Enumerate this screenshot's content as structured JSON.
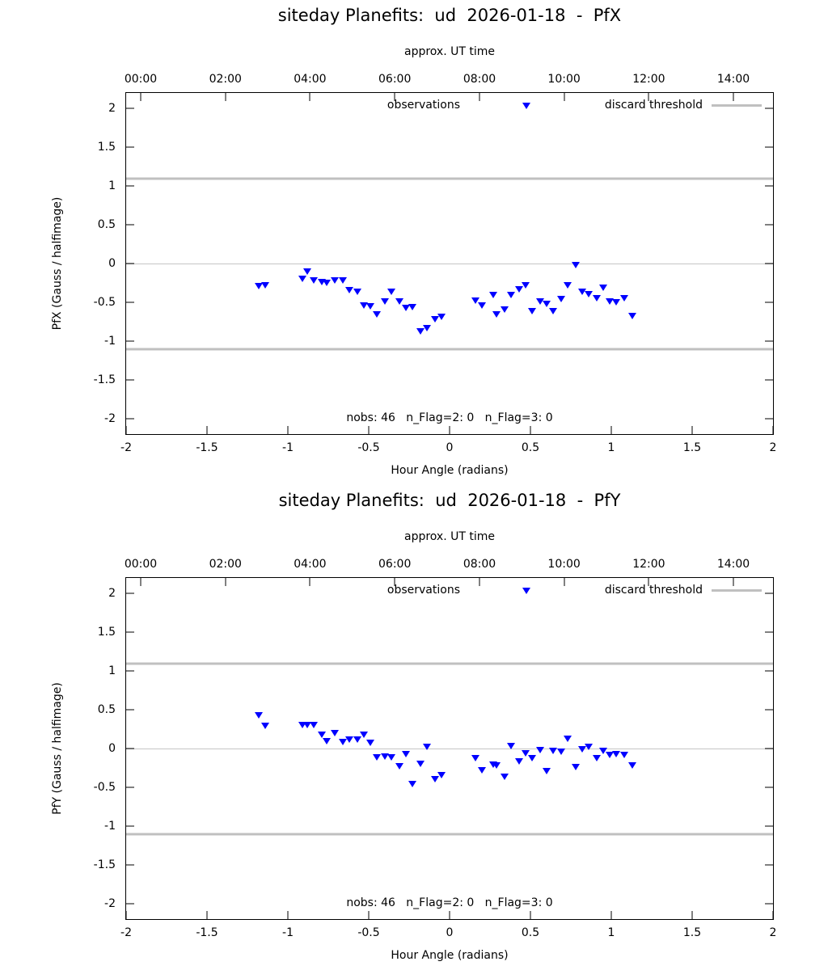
{
  "stats": {
    "nobs": 46,
    "n_flag_2": 0,
    "n_flag_3": 0
  },
  "chart_data": [
    {
      "type": "scatter",
      "title": "siteday Planefits:  ud  2026-01-18  -  PfX",
      "x2label": "approx. UT time",
      "xlabel": "Hour Angle (radians)",
      "ylabel": "PfX (Gauss / halfimage)",
      "xlim": [
        -2,
        2
      ],
      "ylim": [
        -2.2,
        2.2
      ],
      "grid": false,
      "x_ticks": [
        -2,
        -1.5,
        -1,
        -0.5,
        0,
        0.5,
        1,
        1.5,
        2
      ],
      "y_ticks": [
        2,
        1.5,
        1,
        0.5,
        0,
        -0.5,
        -1,
        -1.5,
        -2
      ],
      "ut_ticks": [
        {
          "label": "00:00",
          "ha": -1.91
        },
        {
          "label": "02:00",
          "ha": -1.386
        },
        {
          "label": "04:00",
          "ha": -0.863
        },
        {
          "label": "06:00",
          "ha": -0.339
        },
        {
          "label": "08:00",
          "ha": 0.185
        },
        {
          "label": "10:00",
          "ha": 0.708
        },
        {
          "label": "12:00",
          "ha": 1.232
        },
        {
          "label": "14:00",
          "ha": 1.755
        }
      ],
      "legend": [
        "observations",
        "discard threshold"
      ],
      "legend_position": "top-right-inside",
      "zero_line": 0,
      "thresholds": {
        "name": "discard threshold",
        "color": "#c0c0c0",
        "values": [
          1.1,
          -1.1
        ]
      },
      "annotation": "nobs: 46   n_Flag=2: 0   n_Flag=3: 0",
      "series": [
        {
          "name": "observations",
          "marker": "triangle-down",
          "color": "#0000ff",
          "x": [
            -1.18,
            -1.14,
            -0.91,
            -0.88,
            -0.84,
            -0.79,
            -0.76,
            -0.71,
            -0.66,
            -0.62,
            -0.57,
            -0.53,
            -0.49,
            -0.45,
            -0.4,
            -0.36,
            -0.31,
            -0.27,
            -0.23,
            -0.18,
            -0.14,
            -0.09,
            -0.05,
            0.16,
            0.2,
            0.27,
            0.29,
            0.34,
            0.38,
            0.43,
            0.47,
            0.51,
            0.56,
            0.6,
            0.64,
            0.69,
            0.73,
            0.78,
            0.82,
            0.86,
            0.91,
            0.95,
            0.99,
            1.03,
            1.08,
            1.13
          ],
          "y": [
            -0.29,
            -0.28,
            -0.2,
            -0.1,
            -0.22,
            -0.24,
            -0.25,
            -0.22,
            -0.22,
            -0.34,
            -0.37,
            -0.54,
            -0.55,
            -0.66,
            -0.49,
            -0.36,
            -0.49,
            -0.57,
            -0.56,
            -0.88,
            -0.83,
            -0.72,
            -0.69,
            -0.48,
            -0.54,
            -0.41,
            -0.66,
            -0.59,
            -0.41,
            -0.33,
            -0.28,
            -0.61,
            -0.49,
            -0.52,
            -0.61,
            -0.46,
            -0.28,
            -0.02,
            -0.37,
            -0.4,
            -0.45,
            -0.31,
            -0.49,
            -0.5,
            -0.45,
            -0.68
          ]
        }
      ]
    },
    {
      "type": "scatter",
      "title": "siteday Planefits:  ud  2026-01-18  -  PfY",
      "x2label": "approx. UT time",
      "xlabel": "Hour Angle (radians)",
      "ylabel": "PfY (Gauss / halfimage)",
      "xlim": [
        -2,
        2
      ],
      "ylim": [
        -2.2,
        2.2
      ],
      "grid": false,
      "x_ticks": [
        -2,
        -1.5,
        -1,
        -0.5,
        0,
        0.5,
        1,
        1.5,
        2
      ],
      "y_ticks": [
        2,
        1.5,
        1,
        0.5,
        0,
        -0.5,
        -1,
        -1.5,
        -2
      ],
      "ut_ticks": [
        {
          "label": "00:00",
          "ha": -1.91
        },
        {
          "label": "02:00",
          "ha": -1.386
        },
        {
          "label": "04:00",
          "ha": -0.863
        },
        {
          "label": "06:00",
          "ha": -0.339
        },
        {
          "label": "08:00",
          "ha": 0.185
        },
        {
          "label": "10:00",
          "ha": 0.708
        },
        {
          "label": "12:00",
          "ha": 1.232
        },
        {
          "label": "14:00",
          "ha": 1.755
        }
      ],
      "legend": [
        "observations",
        "discard threshold"
      ],
      "legend_position": "top-right-inside",
      "zero_line": 0,
      "thresholds": {
        "name": "discard threshold",
        "color": "#c0c0c0",
        "values": [
          1.1,
          -1.1
        ]
      },
      "annotation": "nobs: 46   n_Flag=2: 0   n_Flag=3: 0",
      "series": [
        {
          "name": "observations",
          "marker": "triangle-down",
          "color": "#0000ff",
          "x": [
            -1.18,
            -1.14,
            -0.91,
            -0.88,
            -0.84,
            -0.79,
            -0.76,
            -0.71,
            -0.66,
            -0.62,
            -0.57,
            -0.53,
            -0.49,
            -0.45,
            -0.4,
            -0.36,
            -0.31,
            -0.27,
            -0.23,
            -0.18,
            -0.14,
            -0.09,
            -0.05,
            0.16,
            0.2,
            0.27,
            0.29,
            0.34,
            0.38,
            0.43,
            0.47,
            0.51,
            0.56,
            0.6,
            0.64,
            0.69,
            0.73,
            0.78,
            0.82,
            0.86,
            0.91,
            0.95,
            0.99,
            1.03,
            1.08,
            1.13
          ],
          "y": [
            0.43,
            0.29,
            0.3,
            0.3,
            0.3,
            0.18,
            0.09,
            0.2,
            0.08,
            0.11,
            0.11,
            0.18,
            0.07,
            -0.11,
            -0.1,
            -0.11,
            -0.23,
            -0.07,
            -0.46,
            -0.2,
            0.02,
            -0.4,
            -0.34,
            -0.13,
            -0.28,
            -0.21,
            -0.22,
            -0.36,
            0.03,
            -0.17,
            -0.06,
            -0.13,
            -0.02,
            -0.29,
            -0.03,
            -0.04,
            0.13,
            -0.24,
            -0.01,
            0.02,
            -0.13,
            -0.03,
            -0.08,
            -0.07,
            -0.08,
            -0.22
          ]
        }
      ]
    }
  ]
}
